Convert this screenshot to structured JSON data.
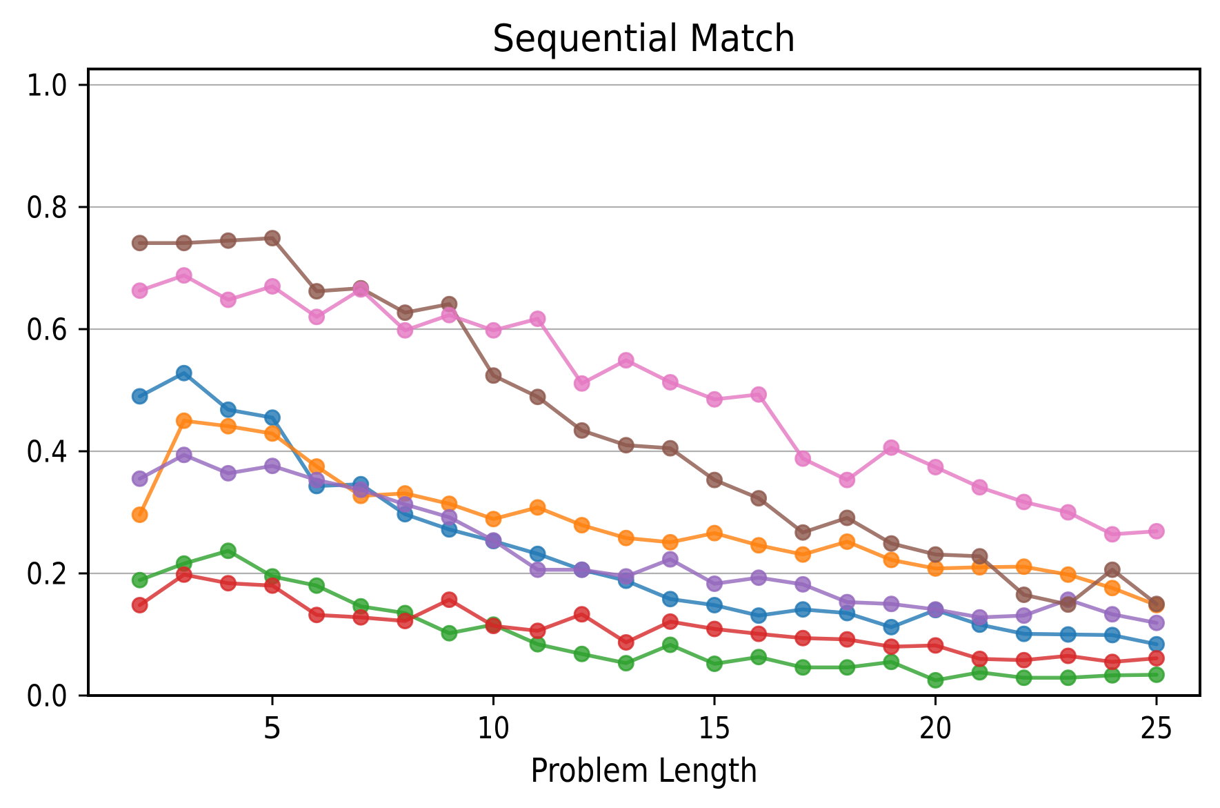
{
  "chart_data": {
    "type": "line",
    "title": "Sequential Match",
    "xlabel": "Problem Length",
    "ylabel": "",
    "grid": "horizontal",
    "legend": "none",
    "marker": "circle",
    "line_alpha": 0.8,
    "grid_color": "#b0b0b0",
    "axis_color": "#000000",
    "xlim": [
      0.85,
      26.0
    ],
    "ylim": [
      0.0,
      1.026
    ],
    "x_ticks": [
      5,
      10,
      15,
      20,
      25
    ],
    "x_tick_labels": [
      "5",
      "10",
      "15",
      "20",
      "25"
    ],
    "y_ticks": [
      0.0,
      0.2,
      0.4,
      0.6,
      0.8,
      1.0
    ],
    "y_tick_labels": [
      "0.0",
      "0.2",
      "0.4",
      "0.6",
      "0.8",
      "1.0"
    ],
    "x": [
      2,
      3,
      4,
      5,
      6,
      7,
      8,
      9,
      10,
      11,
      12,
      13,
      14,
      15,
      16,
      17,
      18,
      19,
      20,
      21,
      22,
      23,
      24,
      25
    ],
    "series": [
      {
        "name": "blue",
        "color": "#1f77b4",
        "values": [
          0.49,
          0.528,
          0.468,
          0.455,
          0.343,
          0.346,
          0.297,
          0.272,
          0.253,
          0.232,
          0.206,
          0.188,
          0.158,
          0.148,
          0.131,
          0.141,
          0.135,
          0.112,
          0.14,
          0.116,
          0.101,
          0.1,
          0.099,
          0.084
        ]
      },
      {
        "name": "orange",
        "color": "#ff7f0e",
        "values": [
          0.296,
          0.45,
          0.441,
          0.429,
          0.375,
          0.327,
          0.331,
          0.314,
          0.289,
          0.308,
          0.279,
          0.258,
          0.251,
          0.266,
          0.246,
          0.231,
          0.252,
          0.222,
          0.208,
          0.21,
          0.211,
          0.198,
          0.176,
          0.148
        ]
      },
      {
        "name": "green",
        "color": "#2ca02c",
        "values": [
          0.189,
          0.216,
          0.237,
          0.195,
          0.18,
          0.146,
          0.135,
          0.102,
          0.116,
          0.084,
          0.068,
          0.053,
          0.083,
          0.052,
          0.063,
          0.046,
          0.046,
          0.055,
          0.025,
          0.038,
          0.029,
          0.029,
          0.033,
          0.034
        ]
      },
      {
        "name": "red",
        "color": "#d62728",
        "values": [
          0.148,
          0.198,
          0.184,
          0.18,
          0.132,
          0.128,
          0.122,
          0.157,
          0.114,
          0.106,
          0.133,
          0.087,
          0.121,
          0.109,
          0.101,
          0.094,
          0.092,
          0.08,
          0.082,
          0.06,
          0.058,
          0.065,
          0.055,
          0.061
        ]
      },
      {
        "name": "purple",
        "color": "#9467bd",
        "values": [
          0.355,
          0.394,
          0.364,
          0.376,
          0.353,
          0.337,
          0.313,
          0.292,
          0.254,
          0.206,
          0.206,
          0.195,
          0.223,
          0.183,
          0.193,
          0.182,
          0.153,
          0.15,
          0.141,
          0.128,
          0.131,
          0.157,
          0.133,
          0.119
        ]
      },
      {
        "name": "brown",
        "color": "#8c564b",
        "values": [
          0.741,
          0.741,
          0.745,
          0.749,
          0.662,
          0.667,
          0.627,
          0.641,
          0.524,
          0.489,
          0.434,
          0.41,
          0.405,
          0.353,
          0.323,
          0.267,
          0.291,
          0.249,
          0.231,
          0.228,
          0.165,
          0.149,
          0.206,
          0.15
        ]
      },
      {
        "name": "pink",
        "color": "#e377c2",
        "values": [
          0.663,
          0.688,
          0.648,
          0.67,
          0.62,
          0.665,
          0.598,
          0.623,
          0.598,
          0.617,
          0.511,
          0.549,
          0.513,
          0.485,
          0.493,
          0.388,
          0.353,
          0.406,
          0.374,
          0.341,
          0.317,
          0.3,
          0.264,
          0.269
        ]
      }
    ]
  }
}
